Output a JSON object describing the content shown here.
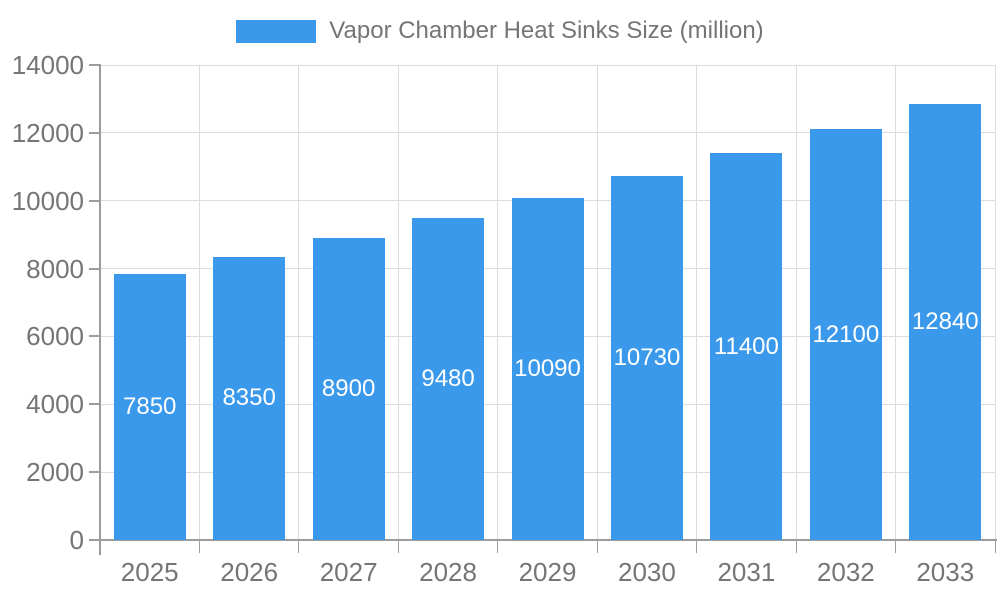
{
  "chart_data": {
    "type": "bar",
    "title": "Vapor Chamber Heat Sinks Size (million)",
    "legend": {
      "label": "Vapor Chamber Heat Sinks Size (million)",
      "position": "top-center"
    },
    "categories": [
      "2025",
      "2026",
      "2027",
      "2028",
      "2029",
      "2030",
      "2031",
      "2032",
      "2033"
    ],
    "series": [
      {
        "name": "Vapor Chamber Heat Sinks Size (million)",
        "values": [
          7850,
          8350,
          8900,
          9480,
          10090,
          10730,
          11400,
          12100,
          12840
        ]
      }
    ],
    "xlabel": "",
    "ylabel": "",
    "ylim": [
      0,
      14000
    ],
    "yticks": [
      0,
      2000,
      4000,
      6000,
      8000,
      10000,
      12000,
      14000
    ],
    "grid": true,
    "bar_value_labels": "inside-middle-white",
    "colors": {
      "bar": "#3B99EC",
      "bar_label_text": "#FFFFFF",
      "gridline": "#DCDCDC",
      "axis_line": "#9C9C9C",
      "tick_text": "#757575",
      "legend_text": "#757575",
      "background": "#FFFFFF"
    }
  }
}
